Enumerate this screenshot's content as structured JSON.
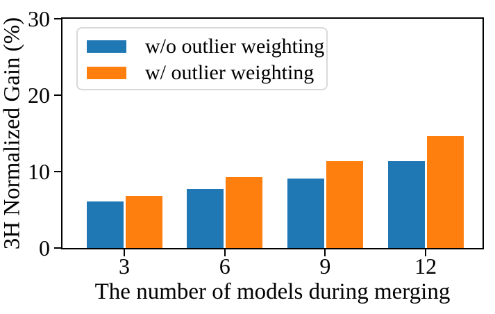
{
  "chart_data": {
    "type": "bar",
    "title": "",
    "xlabel": "The number of models during merging",
    "ylabel": "3H Normalized Gain (%)",
    "categories": [
      "3",
      "6",
      "9",
      "12"
    ],
    "series": [
      {
        "name": "w/o outlier weighting",
        "color": "#1f77b4",
        "values": [
          6.1,
          7.7,
          9.1,
          11.4
        ]
      },
      {
        "name": "w/ outlier weighting",
        "color": "#ff7f0e",
        "values": [
          6.8,
          9.3,
          11.4,
          14.6
        ]
      }
    ],
    "ylim": [
      0,
      30
    ],
    "yticks": [
      0,
      10,
      20,
      30
    ],
    "grid": false,
    "legend_position": "upper left",
    "colors": {
      "axis": "#000000",
      "legend_border": "#d9d9d9",
      "background": "#ffffff"
    }
  }
}
